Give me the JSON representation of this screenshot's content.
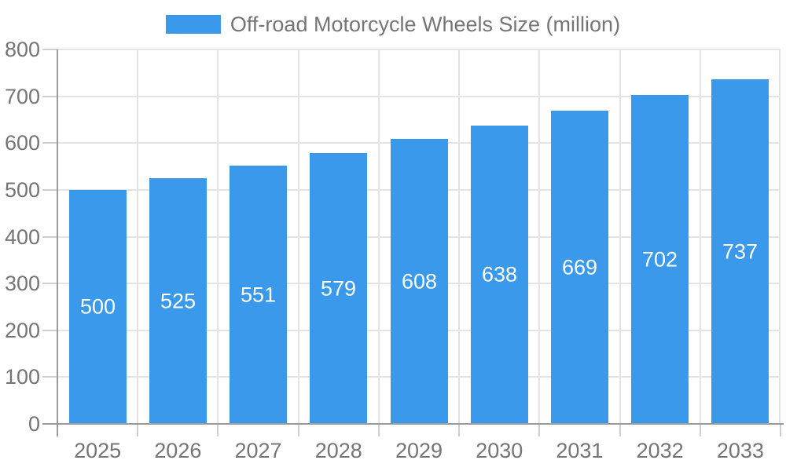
{
  "legend": {
    "label": "Off-road Motorcycle Wheels Size (million)"
  },
  "chart_data": {
    "type": "bar",
    "title": "Off-road Motorcycle Wheels Size (million)",
    "categories": [
      "2025",
      "2026",
      "2027",
      "2028",
      "2029",
      "2030",
      "2031",
      "2032",
      "2033"
    ],
    "values": [
      500,
      525,
      551,
      579,
      608,
      638,
      669,
      702,
      737
    ],
    "xlabel": "",
    "ylabel": "",
    "ylim": [
      0,
      800
    ],
    "ytick_step": 100,
    "grid": true,
    "legend_position": "top",
    "value_labels": "inside-center",
    "colors": {
      "bar": "#3B99EC",
      "grid": "#e3e3e3",
      "tick": "#cfcfcf",
      "axis_line": "#9a9a9a",
      "axis_text": "#757575",
      "value_text": "#ffffff",
      "background": "#ffffff"
    }
  }
}
